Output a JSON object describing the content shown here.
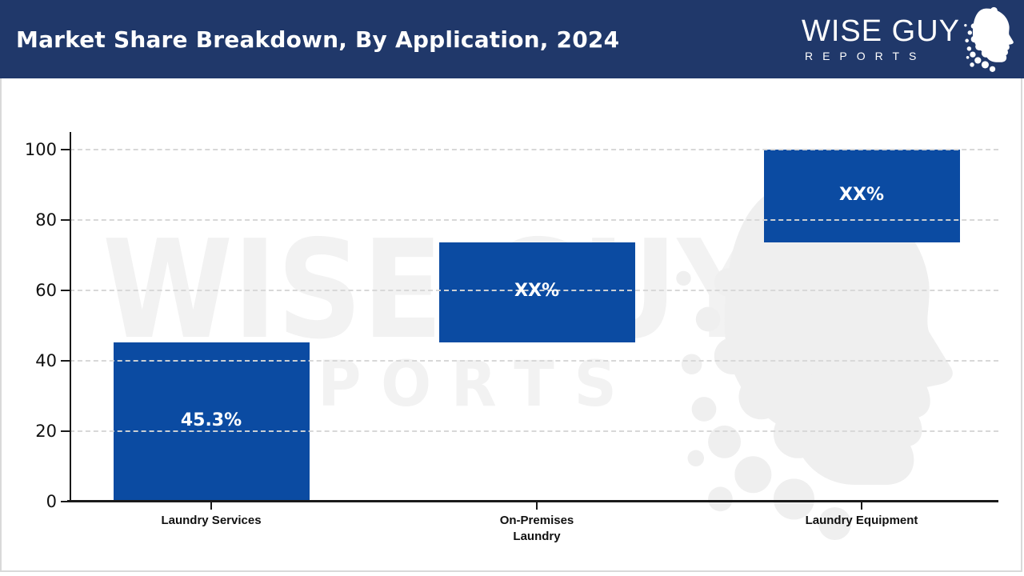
{
  "header": {
    "title": "Market Share Breakdown, By Application, 2024",
    "logo": {
      "wordmark": "WISE GUY",
      "subtext": "REPORTS"
    }
  },
  "watermark": {
    "wordmark": "WISE GUY",
    "subtext": "REPORTS"
  },
  "chart_data": {
    "type": "bar",
    "variant": "stepped-waterfall",
    "title": "Market Share Breakdown, By Application, 2024",
    "categories": [
      "Laundry Services",
      "On-Premises Laundry",
      "Laundry Equipment"
    ],
    "category_display": [
      [
        "Laundry Services"
      ],
      [
        "On-Premises",
        "Laundry"
      ],
      [
        "Laundry Equipment"
      ]
    ],
    "series": [
      {
        "name": "Market Share",
        "segments": [
          {
            "category": "Laundry Services",
            "start": 0,
            "end": 45.3,
            "label": "45.3%"
          },
          {
            "category": "On-Premises Laundry",
            "start": 45.3,
            "end": 73.6,
            "label": "XX%"
          },
          {
            "category": "Laundry Equipment",
            "start": 73.6,
            "end": 100,
            "label": "XX%"
          }
        ]
      }
    ],
    "ylim": [
      0,
      100
    ],
    "yticks": [
      0,
      20,
      40,
      60,
      80,
      100
    ],
    "xlabel": "",
    "ylabel": "",
    "grid": "horizontal-dashed-over-bars",
    "legend": "none",
    "colors": {
      "bar": "#0b4ba2",
      "bar_label": "#ffffff",
      "axis": "#1a1a1a",
      "tick_label": "#111111",
      "gridline": "#d9d9d9",
      "header_bg": "#20386a",
      "card_border": "#d9d9d9",
      "watermark": "#f2f2f2"
    }
  }
}
